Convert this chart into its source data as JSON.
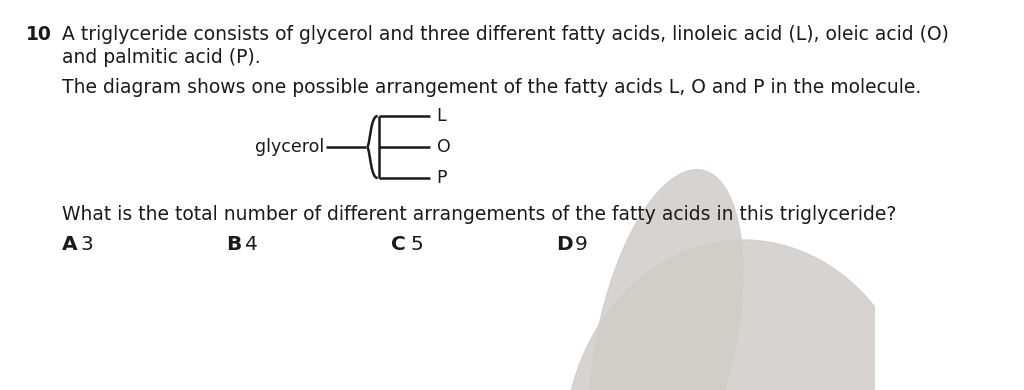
{
  "bg_color": "#ffffff",
  "text_color": "#1a1a1a",
  "question_number": "10",
  "line1": "A triglyceride consists of glycerol and three different fatty acids, linoleic acid (L), oleic acid (O)",
  "line2": "and palmitic acid (P).",
  "diagram_text": "The diagram shows one possible arrangement of the fatty acids L, O and P in the molecule.",
  "question_text": "What is the total number of different arrangements of the fatty acids in this triglyceride?",
  "options": [
    {
      "letter": "A",
      "value": "3"
    },
    {
      "letter": "B",
      "value": "4"
    },
    {
      "letter": "C",
      "value": "5"
    },
    {
      "letter": "D",
      "value": "9"
    }
  ],
  "glycerol_label": "glycerol",
  "fatty_acids": [
    "L",
    "O",
    "P"
  ],
  "font_size_body": 13.5,
  "font_size_diagram": 12.5,
  "font_size_options": 14.5,
  "gray_shape_color": "#d0ccc8",
  "gray_shape_alpha": 0.85
}
